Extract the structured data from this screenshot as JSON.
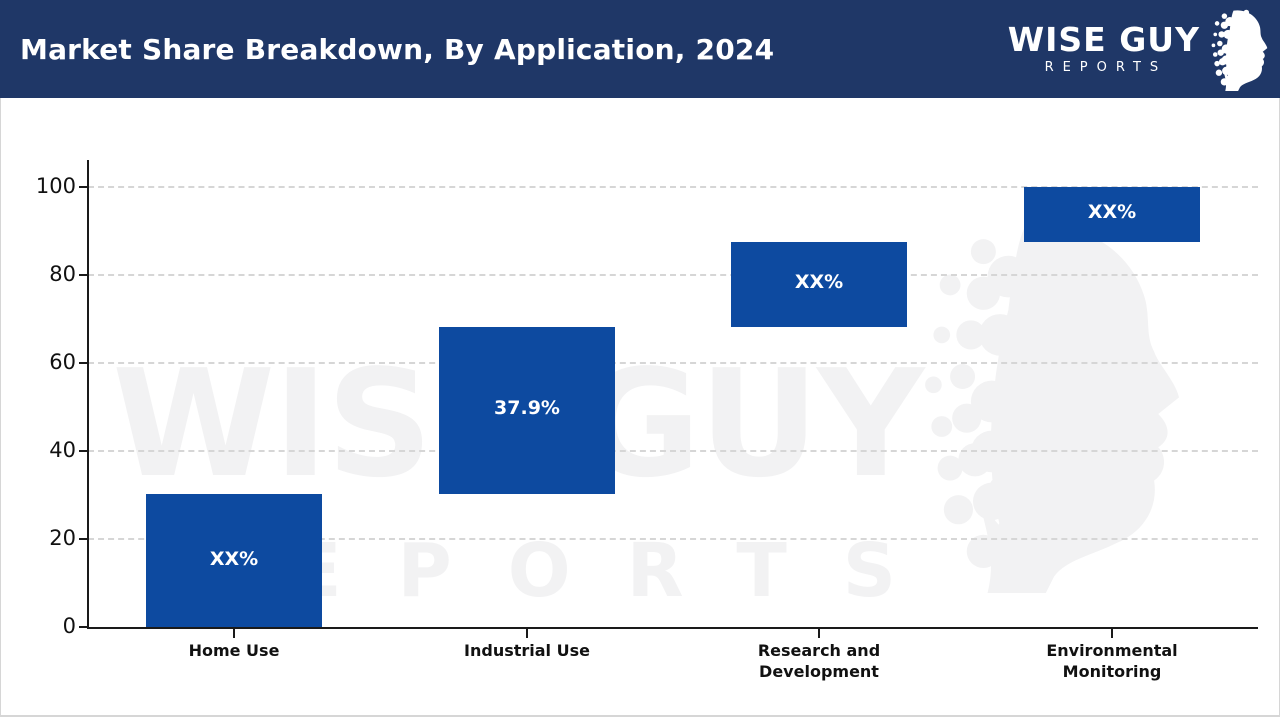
{
  "header": {
    "title": "Market Share Breakdown, By Application, 2024",
    "bg_color": "#1f3767",
    "logo": {
      "name_top": "WISE GUY",
      "name_bottom": "REPORTS"
    }
  },
  "watermark": {
    "text_top": "WISE GUY",
    "text_bottom": "REPORTS"
  },
  "chart_data": {
    "type": "bar",
    "subtype": "waterfall_segmented_market_share",
    "title": "Market Share Breakdown, By Application, 2024",
    "categories": [
      "Home Use",
      "Industrial Use",
      "Research and Development",
      "Environmental Monitoring"
    ],
    "category_lines": [
      [
        "Home Use"
      ],
      [
        "Industrial Use"
      ],
      [
        "Research and",
        "Development"
      ],
      [
        "Environmental",
        "Monitoring"
      ]
    ],
    "segments": [
      {
        "category": "Home Use",
        "label": "XX%",
        "start": 0,
        "end": 30.3
      },
      {
        "category": "Industrial Use",
        "label": "37.9%",
        "start": 30.3,
        "end": 68.2
      },
      {
        "category": "Research and Development",
        "label": "XX%",
        "start": 68.2,
        "end": 87.5
      },
      {
        "category": "Environmental Monitoring",
        "label": "XX%",
        "start": 87.5,
        "end": 100
      }
    ],
    "value_labels_shown": [
      "XX%",
      "37.9%",
      "XX%",
      "XX%"
    ],
    "xlabel": "",
    "ylabel": "",
    "ylim": [
      0,
      100
    ],
    "yticks": [
      0,
      20,
      40,
      60,
      80,
      100
    ],
    "grid": "horizontal dashed",
    "legend": "none",
    "bar_color": "#0d4aa0",
    "bar_label_color": "#ffffff",
    "gridline_color": "#d6d6d6",
    "axis_color": "#1a1a1a"
  }
}
